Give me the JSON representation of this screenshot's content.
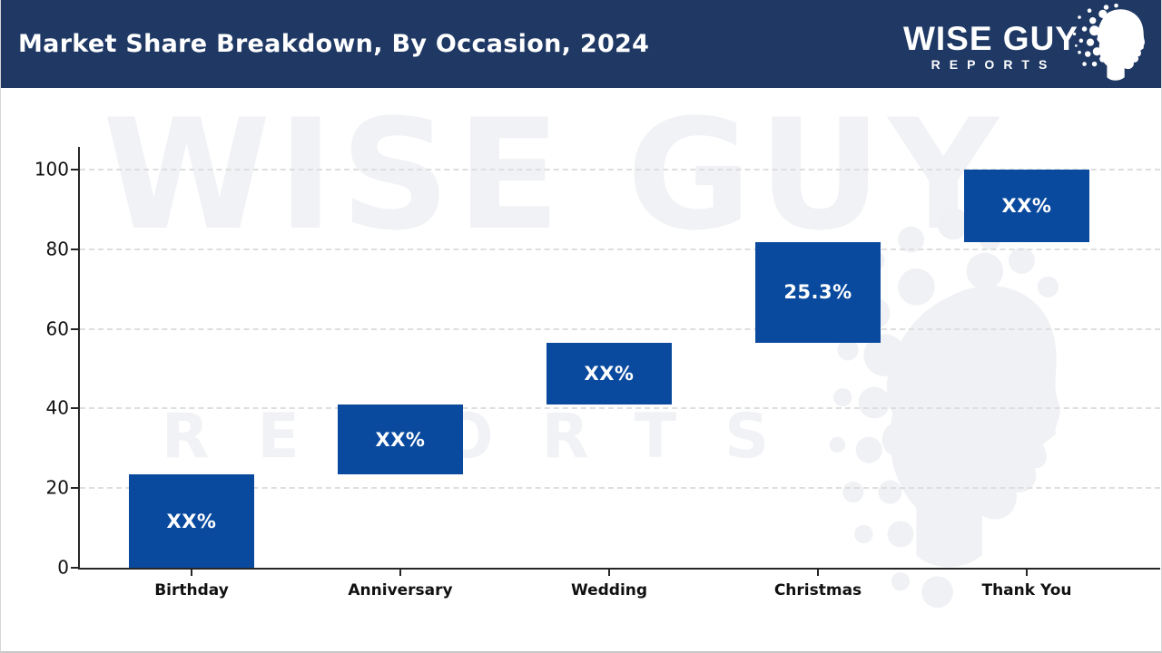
{
  "header": {
    "title": "Market Share Breakdown, By Occasion, 2024",
    "logo": {
      "line1": "WISE GUY",
      "line2": "REPORTS"
    }
  },
  "watermark": {
    "line1": "WISE GUY",
    "line2": "REPORTS"
  },
  "colors": {
    "header_bg": "#1F3864",
    "bar": "#0A4A9E",
    "watermark": "#F1F2F5",
    "gridline": "#DEDEDE",
    "axis": "#262626"
  },
  "chart_data": {
    "type": "bar",
    "subtype": "waterfall-floating-bars",
    "title": "Market Share Breakdown, By Occasion, 2024",
    "xlabel": "",
    "ylabel": "",
    "categories": [
      "Birthday",
      "Anniversary",
      "Wedding",
      "Christmas",
      "Thank You"
    ],
    "bars": [
      {
        "category": "Birthday",
        "start": 0,
        "end": 23.4,
        "value_label": "XX%"
      },
      {
        "category": "Anniversary",
        "start": 23.4,
        "end": 41.0,
        "value_label": "XX%"
      },
      {
        "category": "Wedding",
        "start": 41.0,
        "end": 56.5,
        "value_label": "XX%"
      },
      {
        "category": "Christmas",
        "start": 56.5,
        "end": 81.8,
        "value_label": "25.3%"
      },
      {
        "category": "Thank You",
        "start": 81.8,
        "end": 100,
        "value_label": "XX%"
      }
    ],
    "yticks": [
      0,
      20,
      40,
      60,
      80,
      100
    ],
    "ylim": [
      0,
      105.7
    ],
    "grid": "horizontal-dashed",
    "legend": "none",
    "bar_color": "#0A4A9E"
  }
}
